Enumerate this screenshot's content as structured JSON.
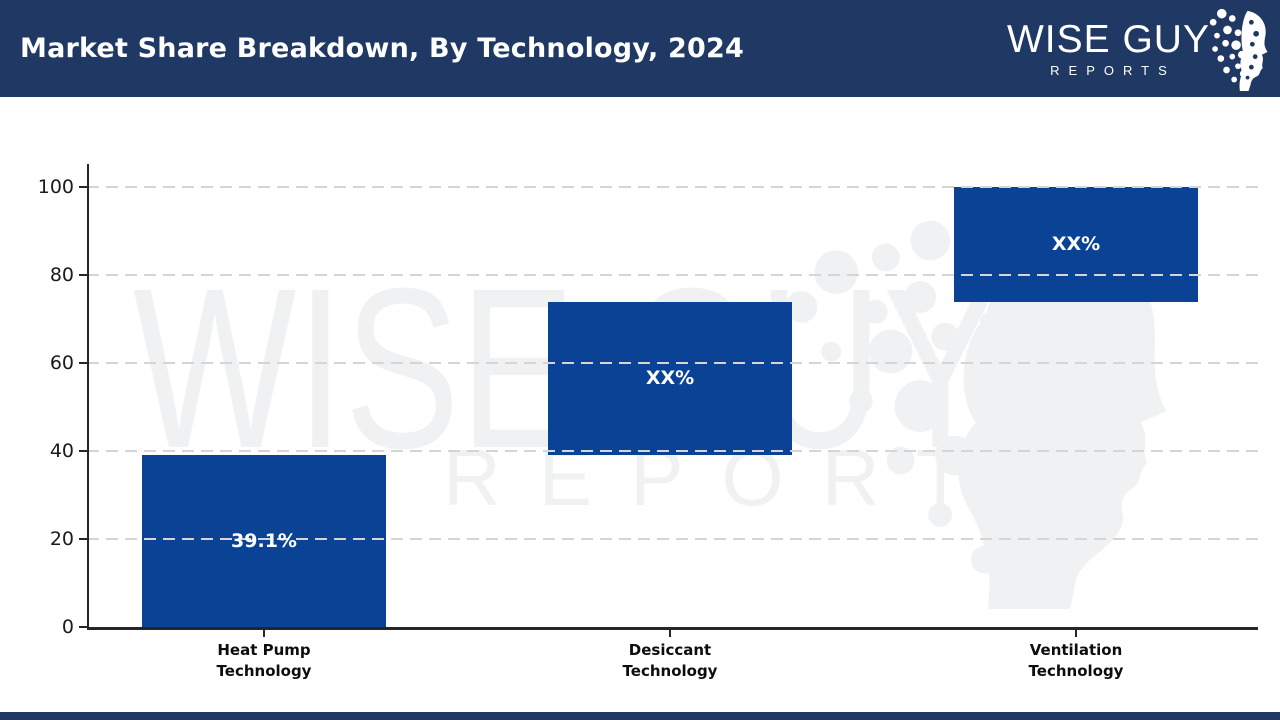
{
  "header": {
    "title": "Market Share Breakdown, By Technology, 2024",
    "logo": {
      "wordmark": "WISE GUY",
      "subtext": "REPORTS"
    }
  },
  "watermark": {
    "wordmark": "WISE GUY",
    "subtext": "REPORTS"
  },
  "chart_data": {
    "type": "bar",
    "subtype": "floating-waterfall",
    "title": "Market Share Breakdown, By Technology, 2024",
    "categories": [
      {
        "line1": "Heat Pump",
        "line2": "Technology"
      },
      {
        "line1": "Desiccant",
        "line2": "Technology"
      },
      {
        "line1": "Ventilation",
        "line2": "Technology"
      }
    ],
    "segments": [
      {
        "name": "Heat Pump Technology",
        "start": 0,
        "end": 39.1,
        "label": "39.1%"
      },
      {
        "name": "Desiccant Technology",
        "start": 39.1,
        "end": 73.9,
        "label": "XX%"
      },
      {
        "name": "Ventilation Technology",
        "start": 73.9,
        "end": 100,
        "label": "XX%"
      }
    ],
    "ylim": [
      0,
      100
    ],
    "yticks": [
      "0",
      "20",
      "40",
      "60",
      "80",
      "100"
    ],
    "grid": {
      "horizontal": true,
      "style": "dashed",
      "drawn_over_bars": true
    },
    "legend": "none",
    "bar_color": "#0a4296",
    "bar_label_color": "#ffffff"
  },
  "colors": {
    "header_bg": "#1f3864",
    "footer_bg": "#1f3864",
    "bar_fill": "#0a4296",
    "axis": "#262626",
    "grid": "#d5d5d5",
    "tick_text": "#1a1a1a",
    "category_text": "#0d0d0d",
    "title_text": "#ffffff",
    "watermark": "#f0f1f3"
  }
}
